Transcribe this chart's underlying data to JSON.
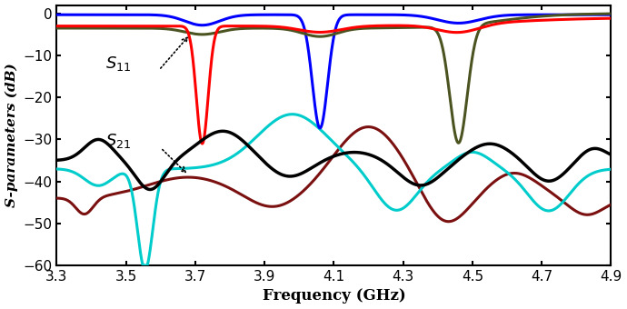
{
  "xlabel": "Frequency (GHz)",
  "ylabel": "S-parameters (dB)",
  "xlim": [
    3.3,
    4.9
  ],
  "ylim": [
    -60,
    2
  ],
  "yticks": [
    0,
    -10,
    -20,
    -30,
    -40,
    -50,
    -60
  ],
  "xticks": [
    3.3,
    3.5,
    3.7,
    3.9,
    4.1,
    4.3,
    4.5,
    4.7,
    4.9
  ],
  "colors": {
    "red": "#FF0000",
    "blue": "#0000FF",
    "olive": "#4B5320",
    "black": "#000000",
    "darkred": "#7B1010",
    "cyan": "#00CCCC"
  }
}
